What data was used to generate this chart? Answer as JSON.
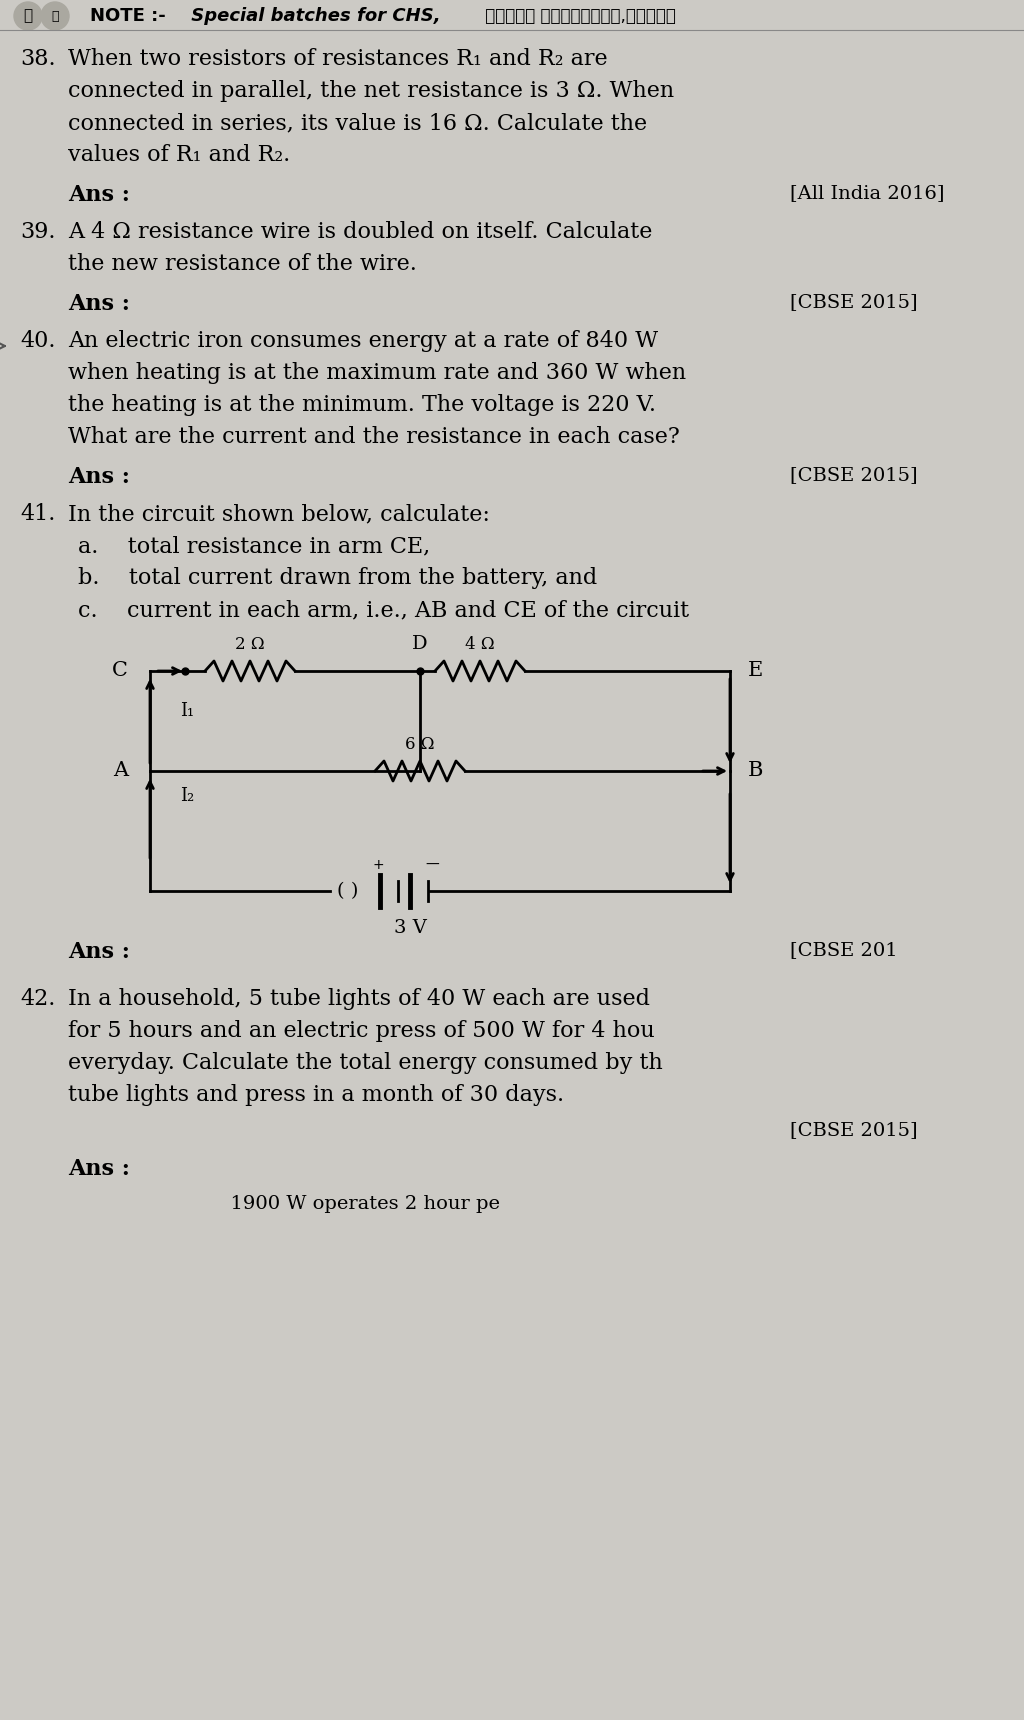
{
  "bg_color": "#cccac5",
  "header_bold": "NOTE :-",
  "header_italic": " Special batches for CHS,",
  "header_hindi": " नवोदय विद्यालय,सैनिक",
  "q38_num": "38.",
  "q38_line1": "When two resistors of resistances R₁ and R₂ are",
  "q38_line2": "connected in parallel, the net resistance is 3 Ω. When",
  "q38_line3": "connected in series, its value is 16 Ω. Calculate the",
  "q38_line4": "values of R₁ and R₂.",
  "ans": "Ans :",
  "ref38": "[All India 2016]",
  "q39_num": "39.",
  "q39_line1": "A 4 Ω resistance wire is doubled on itself. Calculate",
  "q39_line2": "the new resistance of the wire.",
  "ref39": "[CBSE 2015]",
  "q40_num": "40.",
  "q40_line1": "An electric iron consumes energy at a rate of 840 W",
  "q40_line2": "when heating is at the maximum rate and 360 W when",
  "q40_line3": "the heating is at the minimum. The voltage is 220 V.",
  "q40_line4": "What are the current and the resistance in each case?",
  "ref40": "[CBSE 2015]",
  "q41_num": "41.",
  "q41_intro": "In the circuit shown below, calculate:",
  "q41a": "total resistance in arm CE,",
  "q41b": "total current drawn from the battery, and",
  "q41c": "current in each arm, i.e., AB and CE of the circuit",
  "ref41": "[CBSE 201",
  "q42_num": "42.",
  "q42_line1": "In a household, 5 tube lights of 40 W each are used",
  "q42_line2": "for 5 hours and an electric press of 500 W for 4 hou",
  "q42_line3": "everyday. Calculate the total energy consumed by th",
  "q42_line4": "tube lights and press in a month of 30 days.",
  "ref42": "[CBSE 2015]",
  "footer": "1900 W operates 2 hour pe"
}
